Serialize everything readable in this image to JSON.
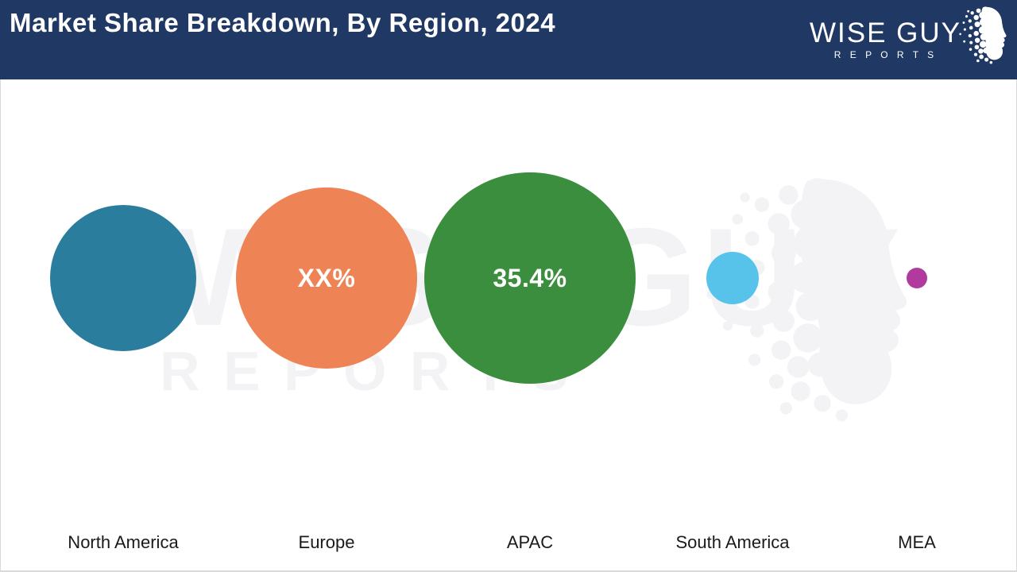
{
  "header": {
    "title": "Market Share Breakdown, By Region, 2024",
    "bg_color": "#1f3864",
    "logo": {
      "line1": "WISE GUY",
      "line2": "R E P O R T S"
    }
  },
  "watermark": {
    "line1": "WISE GUY",
    "line2": "R E P O R T S"
  },
  "chart_data": {
    "type": "bubble",
    "title": "Market Share Breakdown, By Region, 2024",
    "year": "2024",
    "legend_position": "bottom",
    "grid": false,
    "categories": [
      "North America",
      "Europe",
      "APAC",
      "South America",
      "MEA"
    ],
    "bubbles": [
      {
        "category": "North America",
        "label": "",
        "share_pct": null,
        "color": "#2b7d9d",
        "radius_px": 92
      },
      {
        "category": "Europe",
        "label": "XX%",
        "share_pct": null,
        "color": "#ee8456",
        "radius_px": 114
      },
      {
        "category": "APAC",
        "label": "35.4%",
        "share_pct": 35.4,
        "color": "#3a8e3d",
        "radius_px": 133
      },
      {
        "category": "South America",
        "label": "",
        "share_pct": null,
        "color": "#57c3ea",
        "radius_px": 33
      },
      {
        "category": "MEA",
        "label": "",
        "share_pct": null,
        "color": "#b13a9f",
        "radius_px": 13
      }
    ]
  }
}
